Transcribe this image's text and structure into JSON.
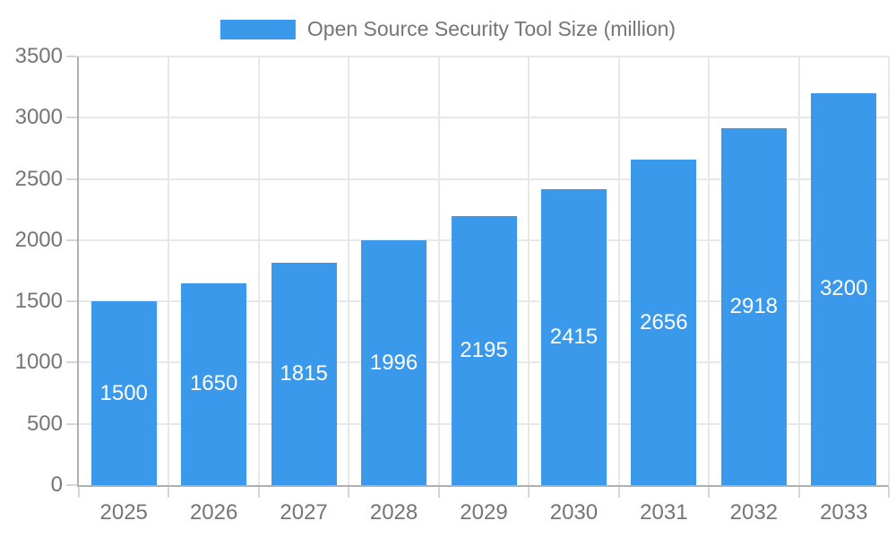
{
  "chart_data": {
    "type": "bar",
    "title": "Open Source Security Tool Size (million)",
    "categories": [
      "2025",
      "2026",
      "2027",
      "2028",
      "2029",
      "2030",
      "2031",
      "2032",
      "2033"
    ],
    "values": [
      1500,
      1650,
      1815,
      1996,
      2195,
      2415,
      2656,
      2918,
      3200
    ],
    "xlabel": "",
    "ylabel": "",
    "ylim": [
      0,
      3500
    ],
    "ytick_step": 500,
    "yticks": [
      0,
      500,
      1000,
      1500,
      2000,
      2500,
      3000,
      3500
    ],
    "grid": true,
    "legend_position": "top",
    "value_labels": "inside-center"
  },
  "colors": {
    "bar": "#3b99ec",
    "bar_label": "#ffffff",
    "axis_line": "#b0b0b0",
    "grid_line": "#e8e8e8",
    "tick": "#d6d6d6",
    "text": "#757575",
    "background": "#ffffff"
  }
}
